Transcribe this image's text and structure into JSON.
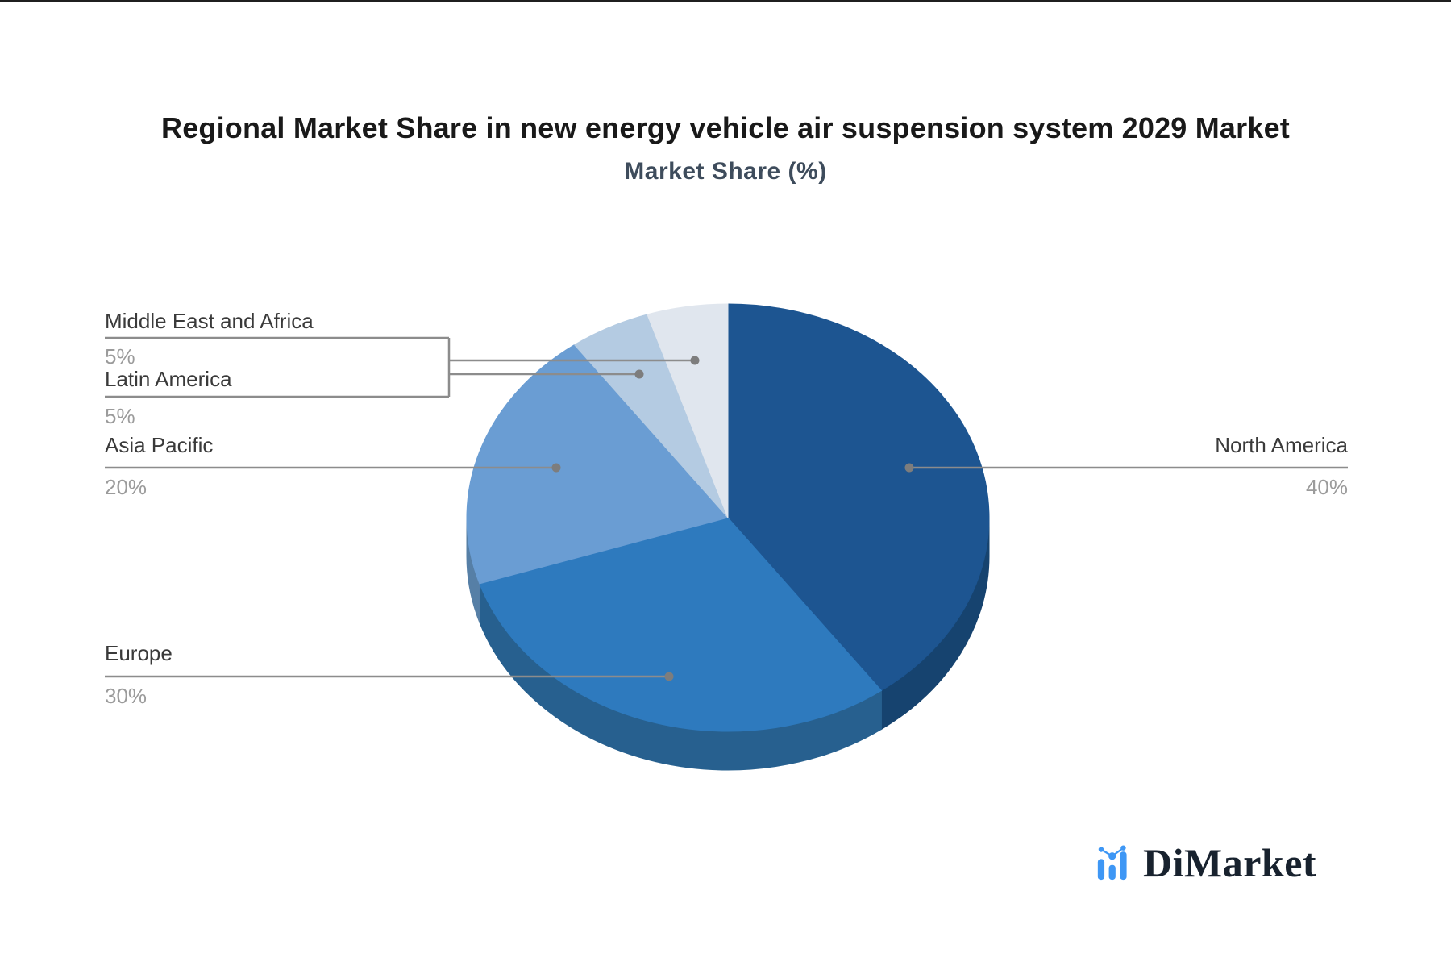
{
  "page": {
    "background": "#FFFFFF",
    "top_border_color": "#1F1F1F"
  },
  "header": {
    "title": "Regional Market Share in new energy vehicle air suspension system 2029 Market",
    "subtitle": "Market Share (%)"
  },
  "chart_data": {
    "type": "pie",
    "title": "Regional Market Share in new energy vehicle air suspension system 2029 Market",
    "subtitle": "Market Share (%)",
    "unit": "%",
    "start_angle_deg": 0,
    "direction": "clockwise",
    "effect": "3d-depth",
    "slices": [
      {
        "label": "North America",
        "value": 40,
        "color": "#1D5591",
        "side_color": "#16436F"
      },
      {
        "label": "Europe",
        "value": 30,
        "color": "#2E7ABE",
        "side_color": "#27608F"
      },
      {
        "label": "Asia Pacific",
        "value": 20,
        "color": "#6A9DD3",
        "side_color": "#567FA6"
      },
      {
        "label": "Latin America",
        "value": 5,
        "color": "#B4CBE2",
        "side_color": "#8FA9C4"
      },
      {
        "label": "Middle East and Africa",
        "value": 5,
        "color": "#E0E6EE",
        "side_color": "#B3BDC9"
      }
    ],
    "callouts": [
      {
        "label": "Middle East and Africa",
        "value_text": "5%"
      },
      {
        "label": "Latin America",
        "value_text": "5%"
      },
      {
        "label": "Asia Pacific",
        "value_text": "20%"
      },
      {
        "label": "Europe",
        "value_text": "30%"
      },
      {
        "label": "North America",
        "value_text": "40%"
      }
    ]
  },
  "styles": {
    "label_color": "#3A3A3A",
    "value_color": "#9B9B9B",
    "leader_color": "#8C8C8C",
    "dot_color": "#7D7D7D"
  },
  "logo": {
    "text": "DiMarket",
    "icon": "bar-chart-with-dots-icon",
    "icon_color": "#3E97F5",
    "text_color": "#18222E"
  }
}
